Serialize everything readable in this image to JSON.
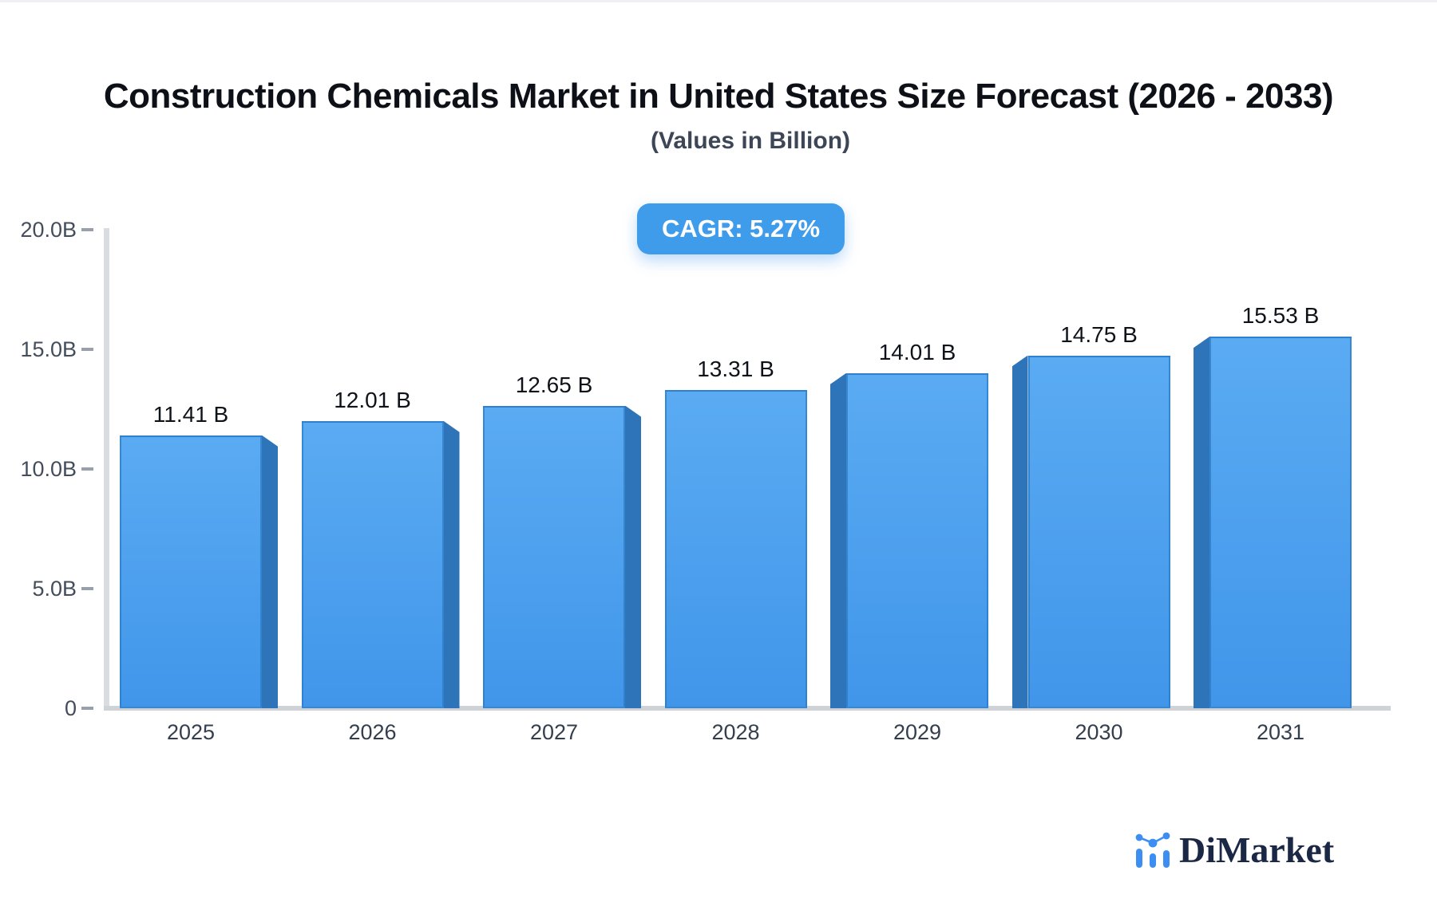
{
  "header": {
    "title": "Construction Chemicals Market in United States Size Forecast (2026 - 2033)",
    "subtitle": "(Values in Billion)"
  },
  "badge": {
    "label": "CAGR: 5.27%",
    "background_color": "#3f9ceb",
    "text_color": "#ffffff"
  },
  "chart_data": {
    "type": "bar",
    "title": "Construction Chemicals Market in United States Size Forecast (2026 - 2033)",
    "subtitle": "(Values in Billion)",
    "categories": [
      "2025",
      "2026",
      "2027",
      "2028",
      "2029",
      "2030",
      "2031"
    ],
    "values": [
      11.41,
      12.01,
      12.65,
      13.31,
      14.01,
      14.75,
      15.53
    ],
    "bar_labels": [
      "11.41 B",
      "12.01 B",
      "12.65 B",
      "13.31 B",
      "14.01 B",
      "14.75 B",
      "15.53 B"
    ],
    "xlabel": "",
    "ylabel": "",
    "ylim": [
      0,
      20
    ],
    "yticks": [
      {
        "value": 0,
        "label": "0"
      },
      {
        "value": 5,
        "label": "5.0B"
      },
      {
        "value": 10,
        "label": "10.0B"
      },
      {
        "value": 15,
        "label": "15.0B"
      },
      {
        "value": 20,
        "label": "20.0B"
      }
    ],
    "grid": false,
    "legend": false,
    "style": "3d-bars, perspective vanishing at center; side shadow right for left bars, left for right bars",
    "bar_color_top": "#5aabf2",
    "bar_color_bottom": "#4196ea",
    "bar_side_color": "#2e74b8",
    "cagr_annotation": "CAGR: 5.27%"
  },
  "logo": {
    "text": "DiMarket",
    "icon": "mini bar chart with trend dots",
    "icon_color": "#3d8ef2",
    "text_color": "#1a2745"
  }
}
